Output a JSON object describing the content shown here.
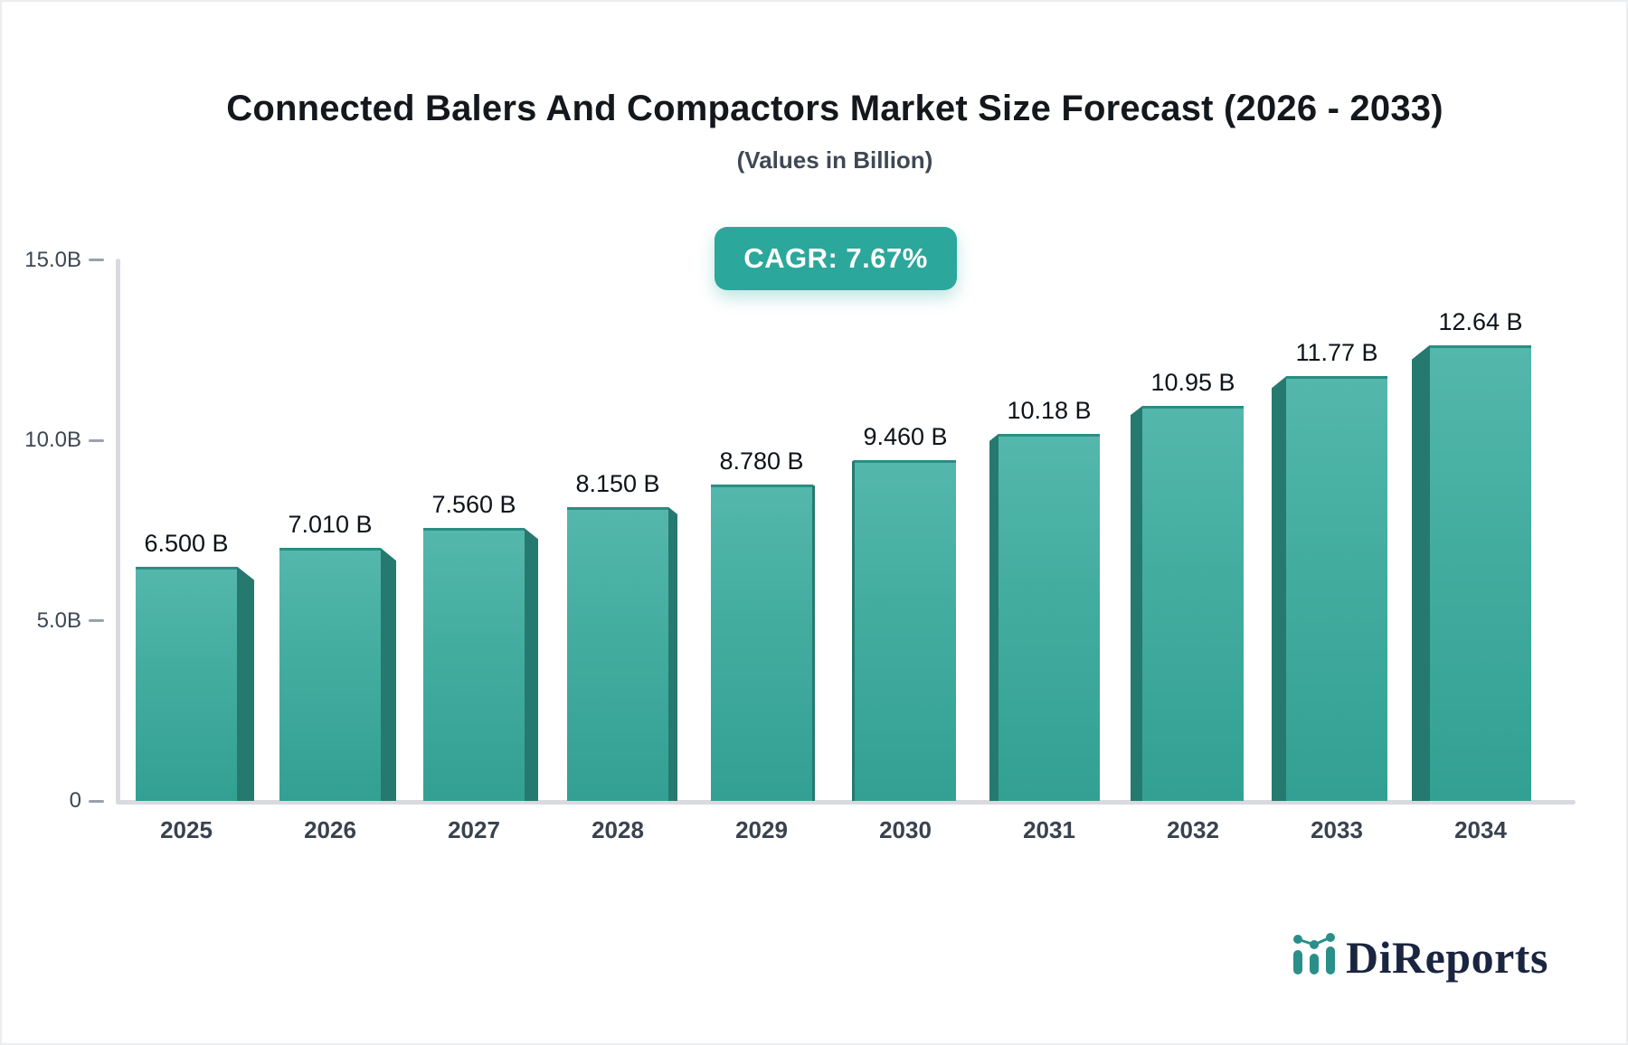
{
  "title": "Connected Balers And Compactors Market Size Forecast (2026 - 2033)",
  "subtitle": "(Values in Billion)",
  "badge": {
    "label": "CAGR: 7.67%"
  },
  "chart_data": {
    "type": "bar",
    "title": "Connected Balers And Compactors Market Size Forecast (2026 - 2033)",
    "subtitle": "(Values in Billion)",
    "xlabel": "",
    "ylabel": "",
    "ylim": [
      0,
      15
    ],
    "grid": false,
    "categories": [
      "2025",
      "2026",
      "2027",
      "2028",
      "2029",
      "2030",
      "2031",
      "2032",
      "2033",
      "2034"
    ],
    "values": [
      6.5,
      7.01,
      7.56,
      8.15,
      8.78,
      9.46,
      10.18,
      10.95,
      11.77,
      12.64
    ],
    "value_labels": [
      "6.500 B",
      "7.010 B",
      "7.560 B",
      "8.150 B",
      "8.780 B",
      "9.460 B",
      "10.18 B",
      "10.95 B",
      "11.77 B",
      "12.64 B"
    ],
    "yticks": [
      {
        "value": 0,
        "label": "0"
      },
      {
        "value": 5,
        "label": "5.0B"
      },
      {
        "value": 10,
        "label": "10.0B"
      },
      {
        "value": 15,
        "label": "15.0B"
      }
    ],
    "cagr": "CAGR: 7.67%",
    "bar_color": "#42AC9F",
    "bar_side_color": "#26796F",
    "bar_top_edge_color": "#2C8D83"
  },
  "logo": {
    "text": "DiReports",
    "icon": "mini-bar-chart-icon",
    "accent": "#2A8F88",
    "text_color": "#1A2540"
  },
  "colors": {
    "badge_bg": "#2BA79B",
    "axis_line": "#D8DADF",
    "tick_dash": "#9AA1AC",
    "tick_label": "#3D4653",
    "value_label": "#0D1319",
    "category_label": "#39424F",
    "title": "#14171C",
    "subtitle": "#3F4854",
    "background": "#FFFFFF"
  }
}
